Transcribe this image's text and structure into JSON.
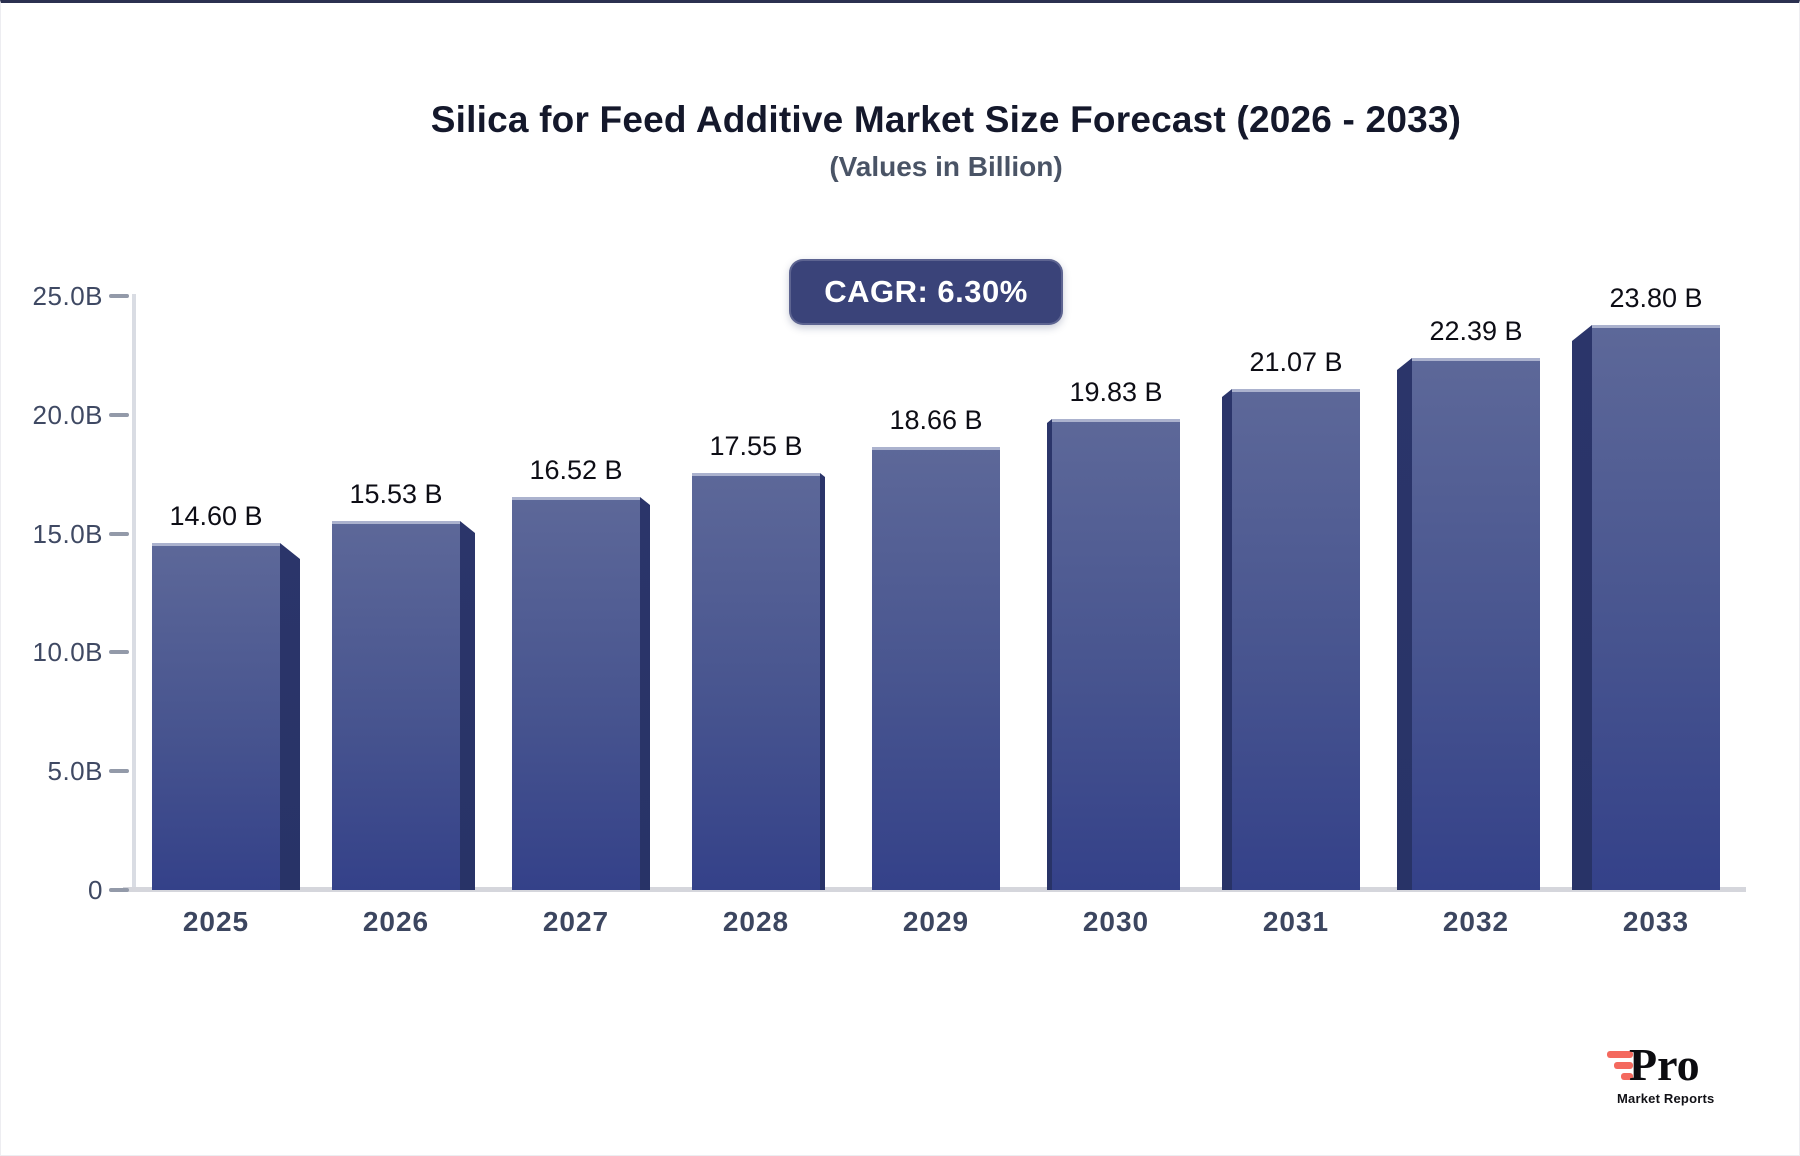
{
  "header": {
    "title": "Silica for Feed Additive Market Size Forecast (2026 - 2033)",
    "subtitle": "(Values in Billion)"
  },
  "badge": {
    "label": "CAGR: 6.30%"
  },
  "chart_data": {
    "type": "bar",
    "title": "Silica for Feed Additive Market Size Forecast (2026 - 2033)",
    "subtitle": "(Values in Billion)",
    "cagr_percent": 6.3,
    "categories": [
      "2025",
      "2026",
      "2027",
      "2028",
      "2029",
      "2030",
      "2031",
      "2032",
      "2033"
    ],
    "values": [
      14.6,
      15.53,
      16.52,
      17.55,
      18.66,
      19.83,
      21.07,
      22.39,
      23.8
    ],
    "value_labels": [
      "14.60 B",
      "15.53 B",
      "16.52 B",
      "17.55 B",
      "18.66 B",
      "19.83 B",
      "21.07 B",
      "22.39 B",
      "23.80 B"
    ],
    "unit": "Billion",
    "xlabel": "",
    "ylabel": "",
    "ylim": [
      0,
      25
    ],
    "yticks": [
      {
        "label": "25.0B",
        "value": 25
      },
      {
        "label": "20.0B",
        "value": 20
      },
      {
        "label": "15.0B",
        "value": 15
      },
      {
        "label": "10.0B",
        "value": 10
      },
      {
        "label": "5.0B",
        "value": 5
      },
      {
        "label": "0",
        "value": 0
      }
    ],
    "grid": false,
    "legend": false,
    "bar_style_3d": true,
    "colors": {
      "bar_front_top": "#5d6899",
      "bar_front_bottom": "#344189",
      "bar_side": "#283367",
      "badge_background": "#3a4379",
      "badge_text": "#ffffff",
      "axis": "#d5d6dc",
      "tick_text": "#3f4963",
      "category_text": "#3c4660",
      "value_text": "#0d0d15"
    }
  },
  "logo": {
    "name": "Pro",
    "subtext": "Market Reports",
    "accent_color": "#f4695e"
  }
}
